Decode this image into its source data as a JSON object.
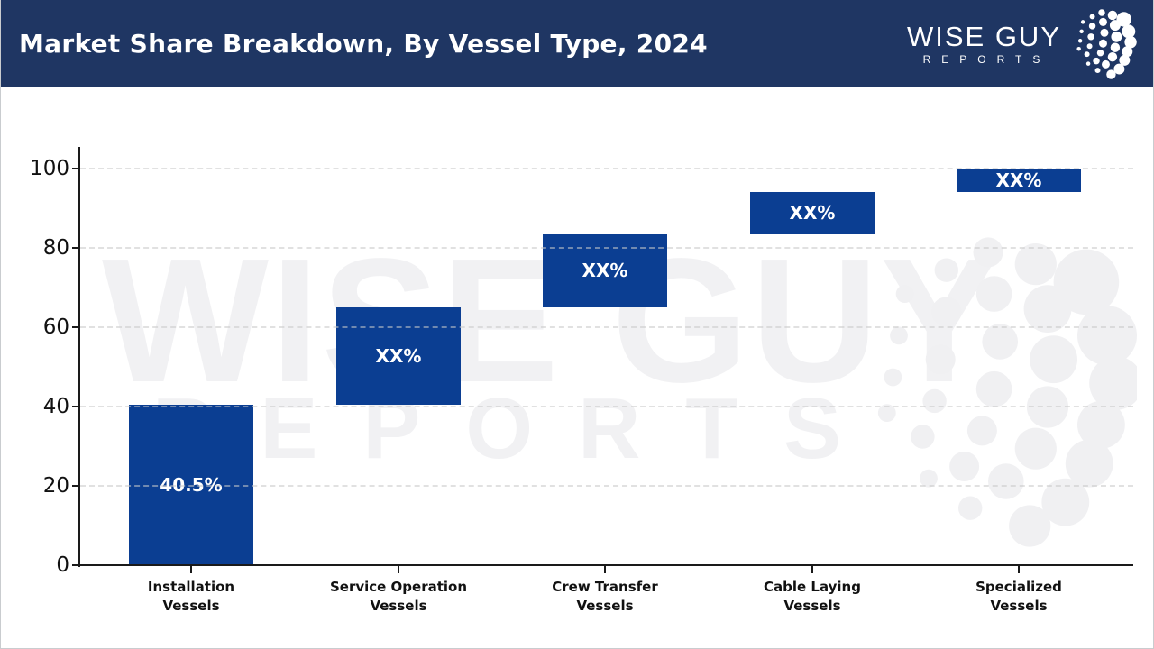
{
  "header": {
    "title": "Market Share Breakdown, By Vessel Type, 2024",
    "logo": {
      "line1": "WISE GUY",
      "line2": "REPORTS"
    }
  },
  "watermark": {
    "line1": "WISE GUY",
    "line2": "REPORTS"
  },
  "chart_data": {
    "type": "bar",
    "subtype": "waterfall",
    "title": "Market Share Breakdown, By Vessel Type, 2024",
    "categories": [
      [
        "Installation",
        "Vessels"
      ],
      [
        "Service Operation",
        "Vessels"
      ],
      [
        "Crew Transfer",
        "Vessels"
      ],
      [
        "Cable Laying",
        "Vessels"
      ],
      [
        "Specialized",
        "Vessels"
      ]
    ],
    "segments": [
      {
        "start": 0,
        "end": 40.5,
        "label": "40.5%"
      },
      {
        "start": 40.5,
        "end": 65,
        "label": "XX%"
      },
      {
        "start": 65,
        "end": 83.5,
        "label": "XX%"
      },
      {
        "start": 83.5,
        "end": 94,
        "label": "XX%"
      },
      {
        "start": 94,
        "end": 100,
        "label": "XX%"
      }
    ],
    "xlabel": "",
    "ylabel": "",
    "ylim": [
      0,
      100
    ],
    "yticks": [
      0,
      20,
      40,
      60,
      80,
      100
    ],
    "grid": "horizontal-dashed",
    "legend": "none",
    "bar_color": "#0b3e92",
    "bar_label_color": "#ffffff"
  },
  "colors": {
    "header_bg": "#1f3663",
    "axis": "#1a1a1a",
    "watermark": "#f1f1f3"
  }
}
